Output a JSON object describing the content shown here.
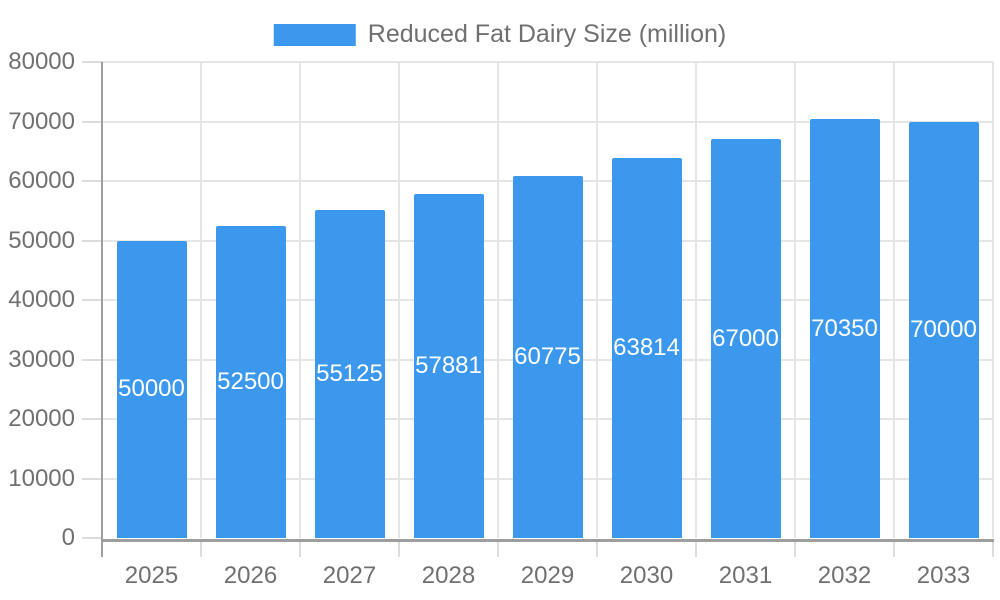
{
  "legend": {
    "label": "Reduced Fat Dairy Size (million)"
  },
  "chart_data": {
    "type": "bar",
    "title": "Reduced Fat Dairy Size (million)",
    "series_name": "Reduced Fat Dairy Size (million)",
    "categories": [
      "2025",
      "2026",
      "2027",
      "2028",
      "2029",
      "2030",
      "2031",
      "2032",
      "2033"
    ],
    "values": [
      50000,
      52500,
      55125,
      57881,
      60775,
      63814,
      67000,
      70350,
      70000
    ],
    "xlabel": "",
    "ylabel": "",
    "ylim": [
      0,
      80000
    ],
    "ytick_step": 10000,
    "yticks": [
      0,
      10000,
      20000,
      30000,
      40000,
      50000,
      60000,
      70000,
      80000
    ],
    "grid": true,
    "legend_position": "top-center",
    "bar_labels_inside": true,
    "colors": {
      "bar": "#3b98ed",
      "bar_label": "#ffffff",
      "axis_text": "#707070",
      "grid_line": "#e5e5e5",
      "tick": "#dcdcdc",
      "axis_line": "#9e9e9e",
      "background": "#ffffff"
    }
  }
}
